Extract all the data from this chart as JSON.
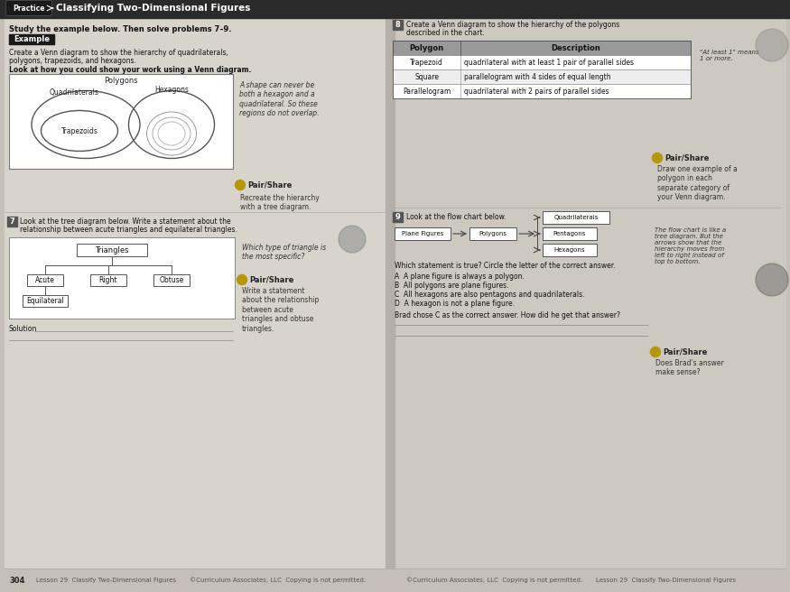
{
  "bg_color": "#c5bfb7",
  "left_bg": "#d8d3cb",
  "right_bg": "#cdc8c0",
  "spine_color": "#b5afa7",
  "header_bg": "#2a2a2a",
  "header_text": "Classifying Two-Dimensional Figures",
  "practice_box_color": "#3a3a3a",
  "study_text": "Study the example below. Then solve problems 7–9.",
  "example_label": "Example",
  "example_text1": "Create a Venn diagram to show the hierarchy of quadrilaterals,",
  "example_text2": "polygons, trapezoids, and hexagons.",
  "example_text3": "Look at how you could show your work using a Venn diagram.",
  "venn_outer_label": "Polygons",
  "venn_left_label": "Quadrilaterals",
  "venn_right_label": "Hexagons",
  "venn_inner_label": "Trapezoids",
  "aside_text": "A shape can never be\nboth a hexagon and a\nquadrilateral. So these\nregions do not overlap.",
  "pair_share1_text": "Recreate the hierarchy\nwith a tree diagram.",
  "p7_text1": "Look at the tree diagram below. Write a statement about the",
  "p7_text2": "relationship between acute triangles and equilateral triangles.",
  "tree_root": "Triangles",
  "tree_ch": [
    "Acute",
    "Right",
    "Obtuse"
  ],
  "tree_gc": "Equilateral",
  "solution_label": "Solution",
  "which_tri": "Which type of triangle is\nthe most specific?",
  "pair_share_left2_text": "Write a statement\nabout the relationship\nbetween acute\ntriangles and obtuse\ntriangles.",
  "p8_text1": "Create a Venn diagram to show the hierarchy of the polygons",
  "p8_text2": "described in the chart.",
  "table_headers": [
    "Polygon",
    "Description"
  ],
  "table_rows": [
    [
      "Trapezoid",
      "quadrilateral with at least 1 pair of parallel sides"
    ],
    [
      "Square",
      "parallelogram with 4 sides of equal length"
    ],
    [
      "Parallelogram",
      "quadrilateral with 2 pairs of parallel sides"
    ]
  ],
  "at_least_note": "\"At least 1\" means\n1 or more.",
  "pair_share_right1_text": "Draw one example of a\npolygon in each\nseparate category of\nyour Venn diagram.",
  "p9_text": "Look at the flow chart below.",
  "flow_labels": [
    "Plane Figures",
    "Polygons",
    "Quadrilaterals",
    "Pentagons",
    "Hexagons"
  ],
  "which_true": "Which statement is true? Circle the letter of the correct answer.",
  "ans_A": "A  A plane figure is always a polygon.",
  "ans_B": "B  All polygons are plane figures.",
  "ans_C": "C  All hexagons are also pentagons and quadrilaterals.",
  "ans_D": "D  A hexagon is not a plane figure.",
  "brad_text": "Brad chose C as the correct answer. How did he get that answer?",
  "flow_note": "The flow chart is like a\ntree diagram. But the\narrows show that the\nhierarchy moves from\nleft to right instead of\ntop to bottom.",
  "pair_share3_text": "Does Brad's answer\nmake sense?",
  "page_num": "304",
  "footer_l": "Lesson 29  Classify Two-Dimensional Figures",
  "footer_c": "©Curriculum Associates, LLC  Copying is not permitted.",
  "footer_r": "©Curriculum Associates, LLC  Copying is not permitted.",
  "footer_r2": "Lesson 29  Classify Two-Dimensional Figures"
}
